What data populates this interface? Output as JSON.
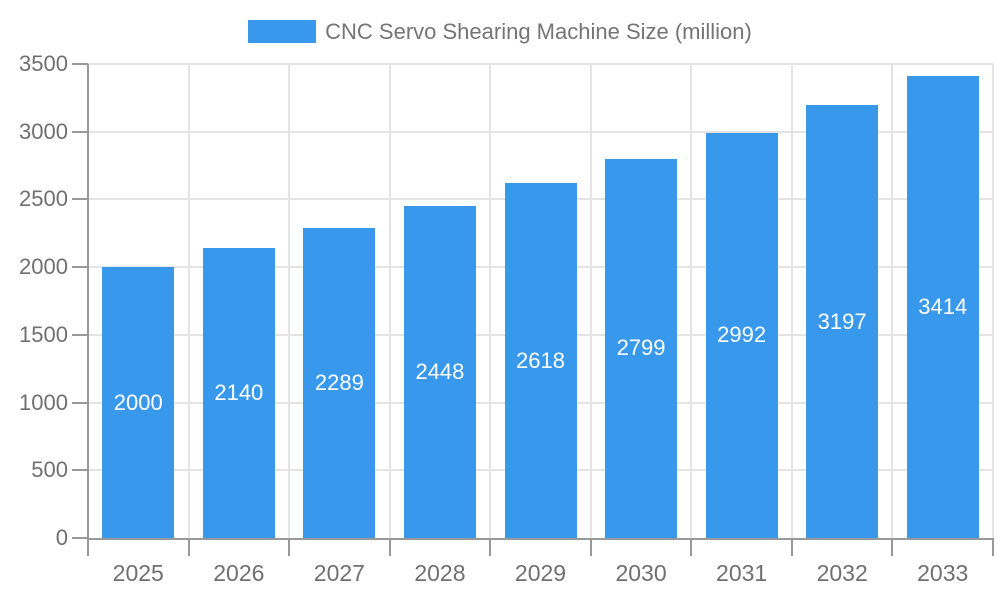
{
  "legend": {
    "position": "top-center"
  },
  "chart_data": {
    "type": "bar",
    "series_name": "CNC Servo Shearing Machine Size (million)",
    "categories": [
      "2025",
      "2026",
      "2027",
      "2028",
      "2029",
      "2030",
      "2031",
      "2032",
      "2033"
    ],
    "values": [
      2000,
      2140,
      2289,
      2448,
      2618,
      2799,
      2992,
      3197,
      3414
    ],
    "title": "",
    "xlabel": "",
    "ylabel": "",
    "ylim": [
      0,
      3500
    ],
    "yticks": [
      0,
      500,
      1000,
      1500,
      2000,
      2500,
      3000,
      3500
    ],
    "grid": true,
    "legend_position": "top-center",
    "value_labels": "inside-center"
  },
  "colors": {
    "bar": "#3899EC",
    "bar_label": "#FFFFFF",
    "legend_text": "#757575",
    "tick_label": "#707070",
    "axis": "#999999",
    "grid": "#E4E4E4",
    "background": "#FFFFFF"
  }
}
